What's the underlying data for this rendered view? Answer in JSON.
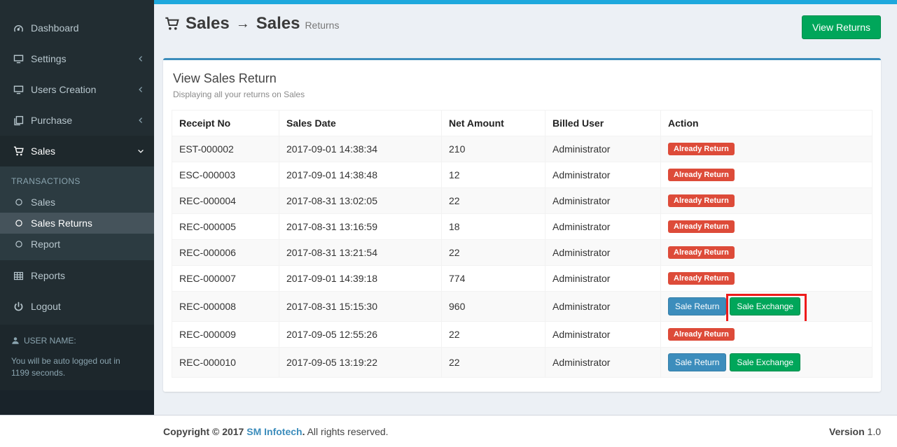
{
  "colors": {
    "sidebar_bg": "#222d32",
    "sidebar_active_bg": "#1e282c",
    "submenu_bg": "#2c3b41",
    "submenu_active_bg": "#45535b",
    "accent_blue": "#3c8dbc",
    "top_bar_blue": "#1ea8dd",
    "green": "#00a65a",
    "red": "#dd4b39",
    "content_bg": "#ecf0f5",
    "annotation_red": "#ee1b1b"
  },
  "sidebar": {
    "items": [
      {
        "label": "Dashboard"
      },
      {
        "label": "Settings"
      },
      {
        "label": "Users Creation"
      },
      {
        "label": "Purchase"
      },
      {
        "label": "Sales"
      }
    ],
    "section_label": "TRANSACTIONS",
    "sub_items": [
      {
        "label": "Sales"
      },
      {
        "label": "Sales Returns"
      },
      {
        "label": "Report"
      }
    ],
    "bottom_items": [
      {
        "label": "Reports"
      },
      {
        "label": "Logout"
      }
    ],
    "user_label": "USER NAME:",
    "auto_logout_note": "You will be auto logged out in 1199 seconds."
  },
  "header": {
    "breadcrumb_primary": "Sales",
    "breadcrumb_arrow": "→",
    "breadcrumb_secondary": "Sales",
    "breadcrumb_sub": "Returns",
    "view_returns_button": "View Returns"
  },
  "card": {
    "title": "View Sales Return",
    "subtitle": "Displaying all your returns on Sales",
    "table": {
      "columns": [
        "Receipt No",
        "Sales Date",
        "Net Amount",
        "Billed User",
        "Action"
      ],
      "rows": [
        {
          "receipt": "EST-000002",
          "date": "2017-09-01 14:38:34",
          "amount": "210",
          "user": "Administrator",
          "actions": [
            {
              "label": "Already Return",
              "style": "danger"
            }
          ]
        },
        {
          "receipt": "ESC-000003",
          "date": "2017-09-01 14:38:48",
          "amount": "12",
          "user": "Administrator",
          "actions": [
            {
              "label": "Already Return",
              "style": "danger"
            }
          ]
        },
        {
          "receipt": "REC-000004",
          "date": "2017-08-31 13:02:05",
          "amount": "22",
          "user": "Administrator",
          "actions": [
            {
              "label": "Already Return",
              "style": "danger"
            }
          ]
        },
        {
          "receipt": "REC-000005",
          "date": "2017-08-31 13:16:59",
          "amount": "18",
          "user": "Administrator",
          "actions": [
            {
              "label": "Already Return",
              "style": "danger"
            }
          ]
        },
        {
          "receipt": "REC-000006",
          "date": "2017-08-31 13:21:54",
          "amount": "22",
          "user": "Administrator",
          "actions": [
            {
              "label": "Already Return",
              "style": "danger"
            }
          ]
        },
        {
          "receipt": "REC-000007",
          "date": "2017-09-01 14:39:18",
          "amount": "774",
          "user": "Administrator",
          "actions": [
            {
              "label": "Already Return",
              "style": "danger"
            }
          ]
        },
        {
          "receipt": "REC-000008",
          "date": "2017-08-31 15:15:30",
          "amount": "960",
          "user": "Administrator",
          "actions": [
            {
              "label": "Sale Return",
              "style": "primary"
            },
            {
              "label": "Sale Exchange",
              "style": "success",
              "highlighted": true
            }
          ]
        },
        {
          "receipt": "REC-000009",
          "date": "2017-09-05 12:55:26",
          "amount": "22",
          "user": "Administrator",
          "actions": [
            {
              "label": "Already Return",
              "style": "danger"
            }
          ]
        },
        {
          "receipt": "REC-000010",
          "date": "2017-09-05 13:19:22",
          "amount": "22",
          "user": "Administrator",
          "actions": [
            {
              "label": "Sale Return",
              "style": "primary"
            },
            {
              "label": "Sale Exchange",
              "style": "success"
            }
          ]
        }
      ]
    }
  },
  "footer": {
    "copyright_bold": "Copyright © 2017",
    "company": "SM Infotech",
    "company_suffix": ".",
    "rights": "All rights reserved.",
    "version_label": "Version",
    "version_value": "1.0"
  }
}
